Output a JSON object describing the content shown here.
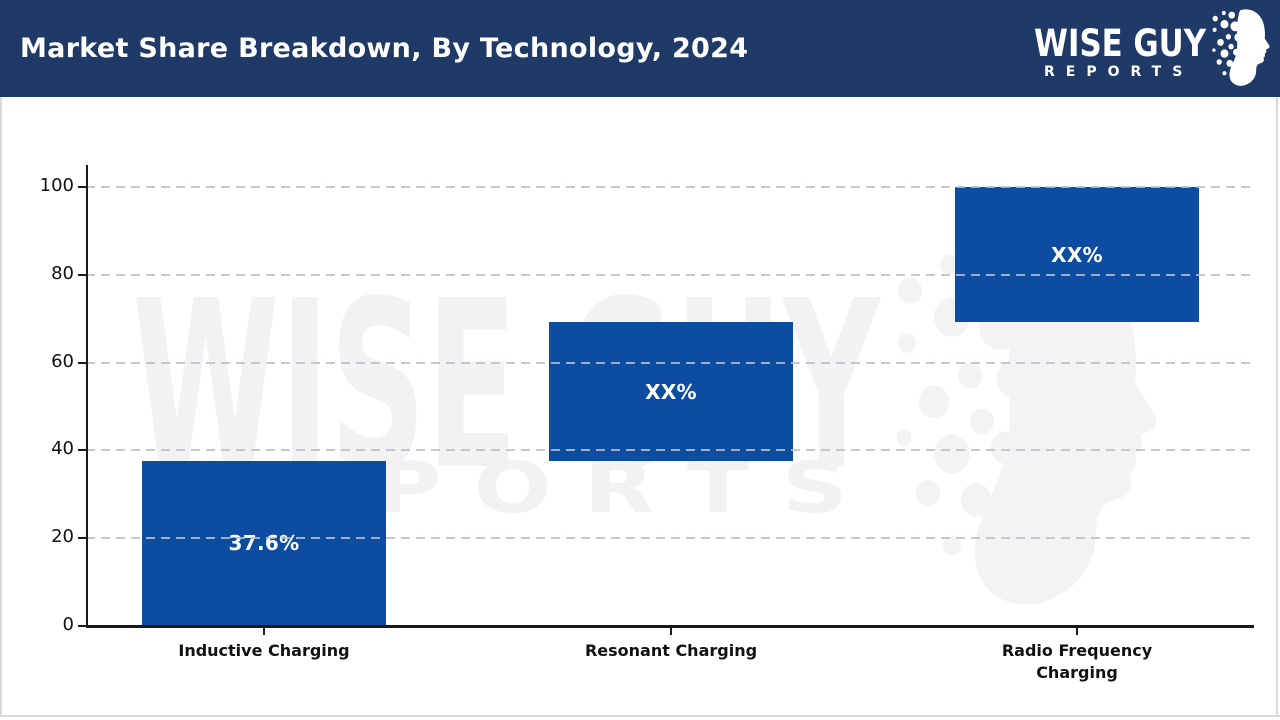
{
  "header": {
    "title": "Market Share Breakdown, By Technology, 2024",
    "logo": {
      "line1": "WISE GUY",
      "line2": "REPORTS"
    }
  },
  "watermark": {
    "line1": "WISE GUY",
    "line2": "R E P O R T S"
  },
  "chart_data": {
    "type": "bar",
    "subtype": "waterfall",
    "title": "Market Share Breakdown, By Technology, 2024",
    "categories": [
      "Inductive Charging",
      "Resonant Charging",
      "Radio Frequency Charging"
    ],
    "bars": [
      {
        "category": "Inductive Charging",
        "start": 0,
        "end": 37.6,
        "label": "37.6%"
      },
      {
        "category": "Resonant Charging",
        "start": 37.6,
        "end": 69.2,
        "label": "XX%"
      },
      {
        "category": "Radio Frequency Charging",
        "start": 69.2,
        "end": 100,
        "label": "XX%"
      }
    ],
    "yticks": [
      0,
      20,
      40,
      60,
      80,
      100
    ],
    "ylim": [
      0,
      105
    ],
    "xlabel": "",
    "ylabel": "",
    "grid": "horizontal-dashed",
    "legend": "none"
  },
  "colors": {
    "header_bg": "#1f3a67",
    "bar_fill": "#0c4da2",
    "bar_label_text": "#ffffff",
    "axis": "#1a1a1a",
    "gridline": "#c5cad3",
    "watermark": "#f2f2f2",
    "page_border": "#d9d9d9"
  }
}
